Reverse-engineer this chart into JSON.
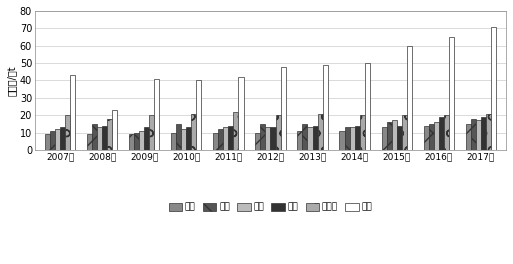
{
  "years": [
    "2007年",
    "2008年",
    "2009年",
    "2010年",
    "2011年",
    "2012年",
    "2013年",
    "2014年",
    "2015年",
    "2016年",
    "2017年"
  ],
  "countries": [
    "英国",
    "荷兰",
    "法国",
    "德国",
    "俄罗斯",
    "美国"
  ],
  "data": {
    "英国": [
      9,
      9,
      9,
      10,
      10,
      10,
      11,
      11,
      13,
      14,
      15
    ],
    "荷兰": [
      11,
      15,
      10,
      15,
      12,
      15,
      15,
      13,
      16,
      15,
      18
    ],
    "法国": [
      12,
      13,
      11,
      12,
      13,
      13,
      13,
      13,
      17,
      16,
      17
    ],
    "德国": [
      13,
      14,
      13,
      13,
      14,
      13,
      14,
      14,
      14,
      19,
      19
    ],
    "俄罗斯": [
      20,
      18,
      20,
      21,
      22,
      20,
      21,
      20,
      20,
      20,
      21
    ],
    "美国": [
      43,
      23,
      41,
      40,
      42,
      48,
      49,
      50,
      60,
      65,
      71
    ]
  },
  "ylim": [
    0,
    80
  ],
  "yticks": [
    0,
    10,
    20,
    30,
    40,
    50,
    60,
    70,
    80
  ],
  "ylabel": "进口量/万t",
  "bar_patterns": [
    "/",
    "x",
    "",
    "H",
    "o",
    ""
  ],
  "bar_colors": [
    "#888888",
    "#555555",
    "#bbbbbb",
    "#333333",
    "#aaaaaa",
    "#ffffff"
  ],
  "bar_edgecolors": [
    "#333333",
    "#333333",
    "#333333",
    "#333333",
    "#333333",
    "#333333"
  ],
  "background_color": "#ffffff",
  "grid_color": "#cccccc",
  "title_color": "#0070c0",
  "xlabel_color": "#c00000"
}
